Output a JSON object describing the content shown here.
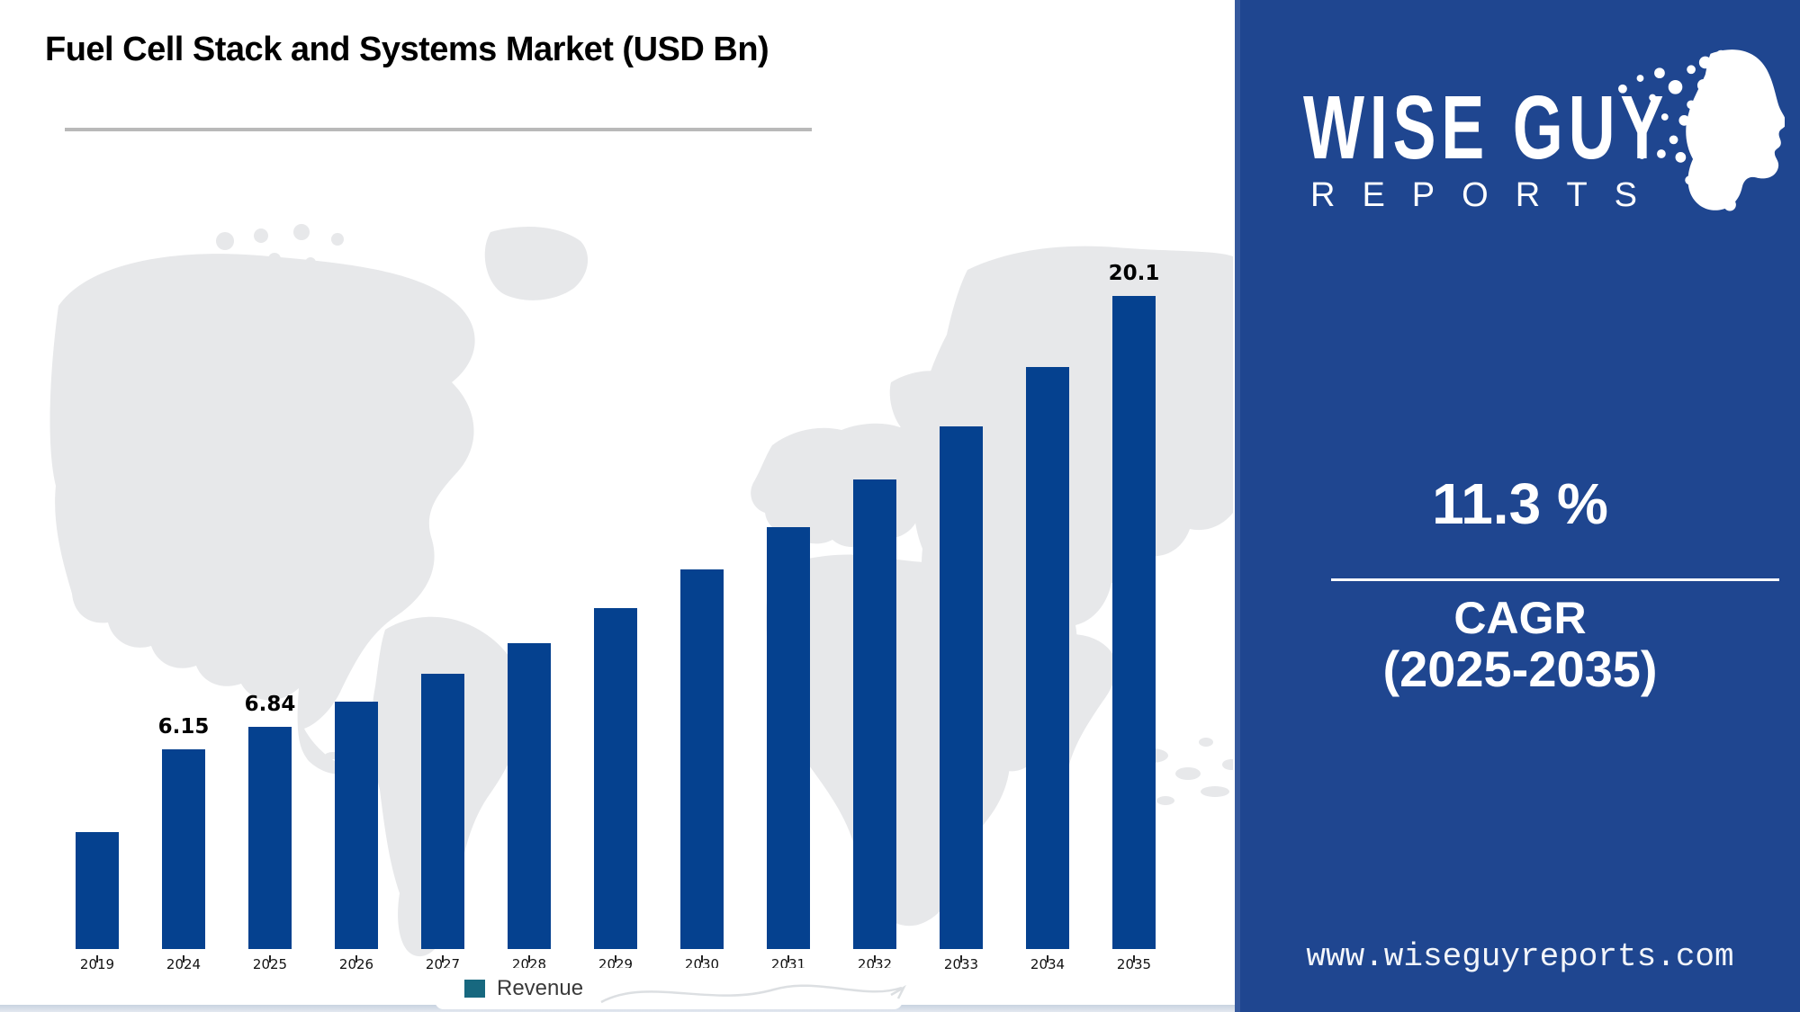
{
  "title": "Fuel Cell Stack and Systems Market (USD Bn)",
  "chart_data": {
    "type": "bar",
    "title": "Fuel Cell Stack and Systems Market (USD Bn)",
    "categories": [
      "2019",
      "2024",
      "2025",
      "2026",
      "2027",
      "2028",
      "2029",
      "2030",
      "2031",
      "2032",
      "2033",
      "2034",
      "2035"
    ],
    "values": [
      3.6,
      6.15,
      6.84,
      7.61,
      8.47,
      9.43,
      10.49,
      11.68,
      13.0,
      14.47,
      16.1,
      17.92,
      20.1
    ],
    "unit": "USD Bn",
    "point_labels": {
      "2024": "6.15",
      "2025": "6.84",
      "2035": "20.1"
    },
    "legend": [
      {
        "label": "Revenue",
        "color": "#17687f"
      }
    ],
    "legend_position": "bottom",
    "bar_color": "#05418f",
    "ylim": [
      0,
      22
    ],
    "grid": false,
    "background": "light-gray world map silhouette"
  },
  "legend": {
    "label": "Revenue",
    "swatch_color": "#17687f"
  },
  "sidebar": {
    "bg_color": "#1f4690",
    "logo": {
      "line1": "WISE GUY",
      "line2": "REPORTS"
    },
    "cagr_value": "11.3 %",
    "cagr_title": "CAGR",
    "cagr_range": "(2025-2035)",
    "website": "www.wiseguyreports.com"
  }
}
